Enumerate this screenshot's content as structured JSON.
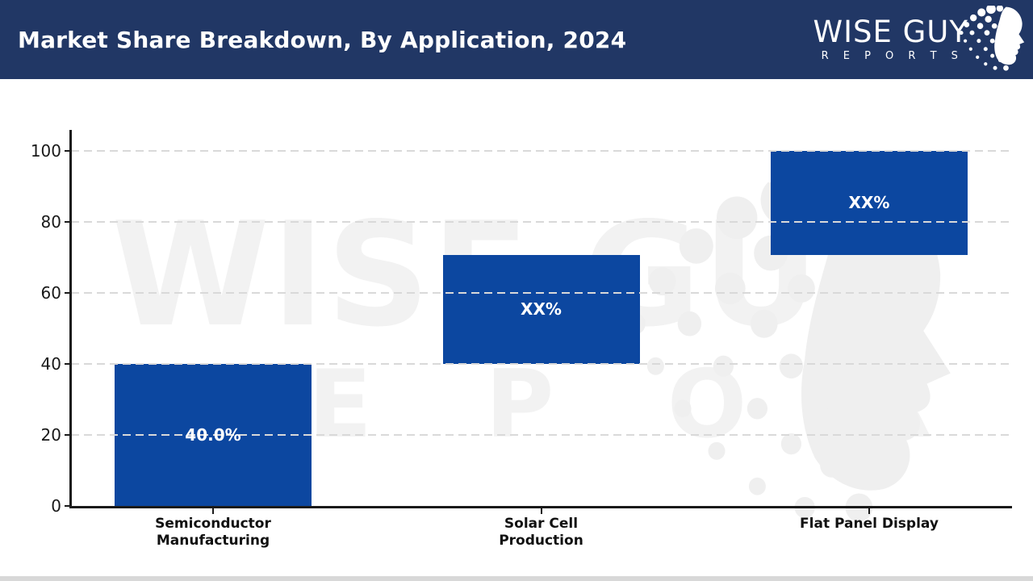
{
  "header": {
    "title": "Market Share Breakdown, By Application, 2024",
    "logo": {
      "name": "WISE GUY",
      "sub": "R E P O R T S",
      "icon": "dotted-face-profile"
    }
  },
  "watermark": {
    "line1": "WISE GUY",
    "line2": "R E P O R T S",
    "icon": "dotted-face-profile"
  },
  "colors": {
    "header_bg": "#213765",
    "bar": "#0c47a0",
    "axis": "#1a1a1a",
    "grid": "#d9d9d9",
    "bar_label_text": "#ffffff",
    "watermark": "#f2f2f2",
    "footer_strip": "#d8d8d8"
  },
  "chart_data": {
    "type": "bar",
    "subtype": "waterfall-breakdown",
    "title": "Market Share Breakdown, By Application, 2024",
    "categories": [
      "Semiconductor Manufacturing",
      "Solar Cell Production",
      "Flat Panel Display"
    ],
    "tick_labels": [
      "Semiconductor\nManufacturing",
      "Solar Cell\nProduction",
      "Flat Panel Display"
    ],
    "segments": [
      {
        "category": "Semiconductor Manufacturing",
        "start": 0,
        "end": 40,
        "label": "40.0%"
      },
      {
        "category": "Solar Cell Production",
        "start": 40,
        "end": 70.7,
        "label": "XX%"
      },
      {
        "category": "Flat Panel Display",
        "start": 70.7,
        "end": 100,
        "label": "XX%"
      }
    ],
    "values_shown": [
      "40.0%",
      "XX%",
      "XX%"
    ],
    "xlabel": "",
    "ylabel": "",
    "ylim": [
      0,
      100
    ],
    "yticks": [
      0,
      20,
      40,
      60,
      80,
      100
    ],
    "grid": "horizontal dashed, drawn over bars",
    "legend": "none",
    "bar_color": "#0c47a0"
  }
}
